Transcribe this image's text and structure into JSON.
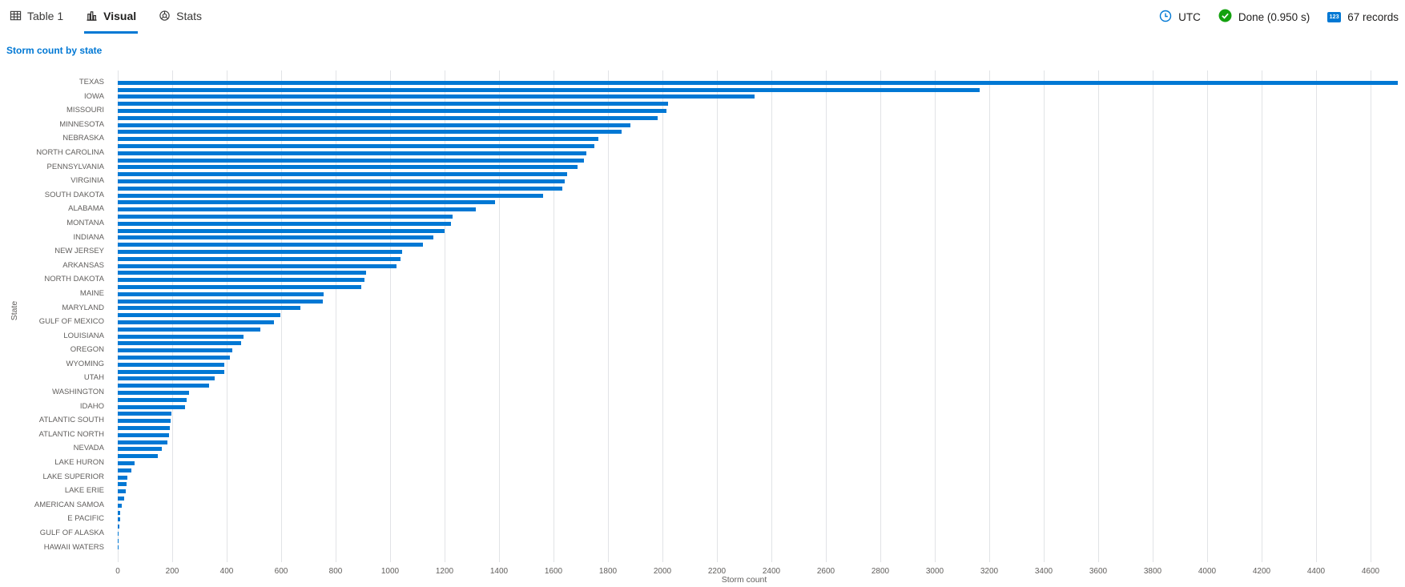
{
  "header": {
    "tabs": [
      {
        "label": "Table 1",
        "icon": "table-icon",
        "active": false
      },
      {
        "label": "Visual",
        "icon": "bar-chart-icon",
        "active": true
      },
      {
        "label": "Stats",
        "icon": "donut-chart-icon",
        "active": false
      }
    ],
    "status": {
      "timezone": "UTC",
      "done": "Done (0.950 s)",
      "records": "67 records",
      "records_icon_text": "123"
    }
  },
  "chart_title": "Storm count by state",
  "colors": {
    "accent": "#0078d4",
    "bar": "#0078d4",
    "success_green": "#13a10e",
    "gridline": "#e1e3e6",
    "axis_text": "#605e5c",
    "title_blue": "#0078d4"
  },
  "chart_data": {
    "type": "bar",
    "orientation": "horizontal",
    "title": "Storm count by state",
    "xlabel": "Storm count",
    "ylabel": "State",
    "xlim": [
      0,
      4727
    ],
    "x_ticks": [
      0,
      200,
      400,
      600,
      800,
      1000,
      1200,
      1400,
      1600,
      1800,
      2000,
      2200,
      2400,
      2600,
      2800,
      3000,
      3200,
      3400,
      3600,
      3800,
      4000,
      4200,
      4400,
      4600
    ],
    "grid": true,
    "legend": "none",
    "note": "67 bars sorted descending; axis labels shown for every other bar only (blank label = unlabeled bar in screenshot)",
    "bars": [
      {
        "label": "TEXAS",
        "value": 4701
      },
      {
        "label": "",
        "value": 3166
      },
      {
        "label": "IOWA",
        "value": 2337
      },
      {
        "label": "",
        "value": 2022
      },
      {
        "label": "MISSOURI",
        "value": 2016
      },
      {
        "label": "",
        "value": 1983
      },
      {
        "label": "MINNESOTA",
        "value": 1881
      },
      {
        "label": "",
        "value": 1850
      },
      {
        "label": "NEBRASKA",
        "value": 1766
      },
      {
        "label": "",
        "value": 1750
      },
      {
        "label": "NORTH CAROLINA",
        "value": 1721
      },
      {
        "label": "",
        "value": 1712
      },
      {
        "label": "PENNSYLVANIA",
        "value": 1687
      },
      {
        "label": "",
        "value": 1651
      },
      {
        "label": "VIRGINIA",
        "value": 1642
      },
      {
        "label": "",
        "value": 1633
      },
      {
        "label": "SOUTH DAKOTA",
        "value": 1562
      },
      {
        "label": "",
        "value": 1386
      },
      {
        "label": "ALABAMA",
        "value": 1315
      },
      {
        "label": "",
        "value": 1230
      },
      {
        "label": "MONTANA",
        "value": 1224
      },
      {
        "label": "",
        "value": 1200
      },
      {
        "label": "INDIANA",
        "value": 1158
      },
      {
        "label": "",
        "value": 1120
      },
      {
        "label": "NEW JERSEY",
        "value": 1044
      },
      {
        "label": "",
        "value": 1038
      },
      {
        "label": "ARKANSAS",
        "value": 1024
      },
      {
        "label": "",
        "value": 912
      },
      {
        "label": "NORTH DAKOTA",
        "value": 905
      },
      {
        "label": "",
        "value": 894
      },
      {
        "label": "MAINE",
        "value": 757
      },
      {
        "label": "",
        "value": 753
      },
      {
        "label": "MARYLAND",
        "value": 671
      },
      {
        "label": "",
        "value": 597
      },
      {
        "label": "GULF OF MEXICO",
        "value": 574
      },
      {
        "label": "",
        "value": 524
      },
      {
        "label": "LOUISIANA",
        "value": 463
      },
      {
        "label": "",
        "value": 453
      },
      {
        "label": "OREGON",
        "value": 420
      },
      {
        "label": "",
        "value": 412
      },
      {
        "label": "WYOMING",
        "value": 392
      },
      {
        "label": "",
        "value": 390
      },
      {
        "label": "UTAH",
        "value": 356
      },
      {
        "label": "",
        "value": 334
      },
      {
        "label": "WASHINGTON",
        "value": 261
      },
      {
        "label": "",
        "value": 252
      },
      {
        "label": "IDAHO",
        "value": 247
      },
      {
        "label": "",
        "value": 197
      },
      {
        "label": "ATLANTIC SOUTH",
        "value": 193
      },
      {
        "label": "",
        "value": 190
      },
      {
        "label": "ATLANTIC NORTH",
        "value": 188
      },
      {
        "label": "",
        "value": 181
      },
      {
        "label": "NEVADA",
        "value": 161
      },
      {
        "label": "",
        "value": 146
      },
      {
        "label": "LAKE HURON",
        "value": 63
      },
      {
        "label": "",
        "value": 51
      },
      {
        "label": "LAKE SUPERIOR",
        "value": 34
      },
      {
        "label": "",
        "value": 33
      },
      {
        "label": "LAKE ERIE",
        "value": 28
      },
      {
        "label": "",
        "value": 23
      },
      {
        "label": "AMERICAN SAMOA",
        "value": 16
      },
      {
        "label": "",
        "value": 10
      },
      {
        "label": "E PACIFIC",
        "value": 8
      },
      {
        "label": "",
        "value": 5
      },
      {
        "label": "GULF OF ALASKA",
        "value": 3
      },
      {
        "label": "",
        "value": 2
      },
      {
        "label": "HAWAII WATERS",
        "value": 1
      }
    ]
  }
}
